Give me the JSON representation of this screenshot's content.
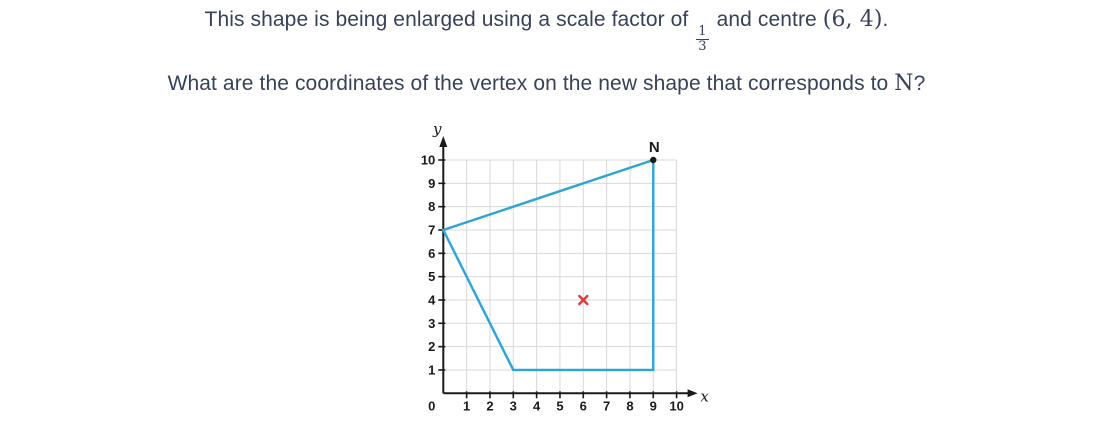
{
  "colors": {
    "text": "#36415A",
    "shape_line": "#2BA5D8",
    "centre_marker": "#E8333B",
    "axis": "#1A1A1A",
    "grid": "#D8D8D8",
    "tick_label": "#1A1A1A"
  },
  "question": {
    "line1_prefix": "This shape is being enlarged using a scale factor of",
    "fraction_numerator": "1",
    "fraction_denominator": "3",
    "line1_middle": "and centre",
    "centre": "(6, 4)",
    "line1_period": ".",
    "line2_prefix": "What are the coordinates of the vertex on the new shape that corresponds to",
    "vertex_name": "N",
    "question_mark": "?"
  },
  "chart_data": {
    "type": "line",
    "title": "",
    "xlabel": "x",
    "ylabel": "y",
    "xlim": [
      0,
      10
    ],
    "ylim": [
      0,
      10
    ],
    "x_ticks": [
      1,
      2,
      3,
      4,
      5,
      6,
      7,
      8,
      9,
      10
    ],
    "y_ticks": [
      1,
      2,
      3,
      4,
      5,
      6,
      7,
      8,
      9,
      10
    ],
    "origin_label": "0",
    "grid": true,
    "legend": false,
    "shape_vertices": [
      [
        0,
        7
      ],
      [
        9,
        10
      ],
      [
        9,
        1
      ],
      [
        3,
        1
      ]
    ],
    "shape_closed": true,
    "labeled_vertex": {
      "label": "N",
      "x": 9,
      "y": 10,
      "marker": "dot"
    },
    "centre_of_enlargement": {
      "x": 6,
      "y": 4,
      "marker": "x"
    }
  }
}
